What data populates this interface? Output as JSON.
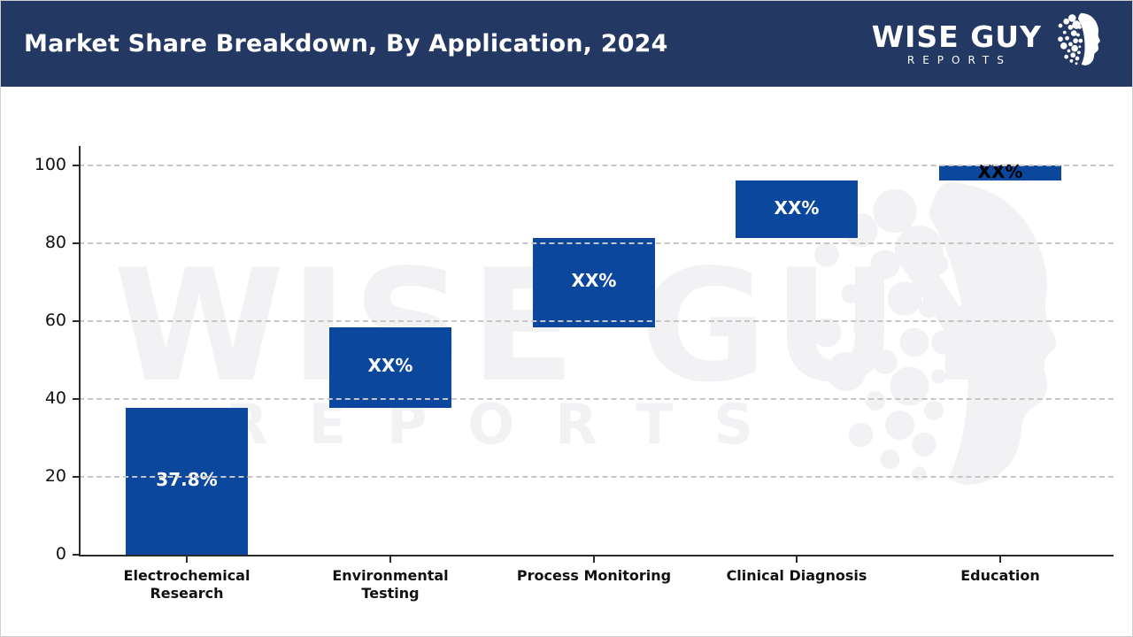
{
  "header": {
    "title": "Market Share Breakdown, By Application, 2024",
    "logo": {
      "line1": "WISE GUY",
      "line2": "REPORTS"
    }
  },
  "watermark": {
    "line1": "WISE GUY",
    "line2": "REPORTS"
  },
  "colors": {
    "header_bg": "#233862",
    "bar_blue": "#0c479e",
    "grid_gray": "#c6c6c6",
    "spine_dark": "#2a2a2a",
    "watermark_gray": "#f2f2f4",
    "label_white": "#ffffff",
    "label_black": "#000000"
  },
  "chart_data": {
    "type": "bar",
    "subtype": "waterfall-stacked-cumulative",
    "title": "Market Share Breakdown, By Application, 2024",
    "xlabel": "",
    "ylabel": "",
    "ylim": [
      0,
      100
    ],
    "yticks": [
      0,
      20,
      40,
      60,
      80,
      100
    ],
    "grid": "horizontal-dashed",
    "legend": "none",
    "categories": [
      "Electrochemical\nResearch",
      "Environmental\nTesting",
      "Process Monitoring",
      "Clinical Diagnosis",
      "Education"
    ],
    "segments": [
      {
        "category": "Electrochemical\nResearch",
        "start": 0,
        "end": 37.8,
        "value": 37.8,
        "label": "37.8%",
        "label_color": "#ffffff"
      },
      {
        "category": "Environmental\nTesting",
        "start": 37.8,
        "end": 58.5,
        "value": 20.7,
        "label": "XX%",
        "label_color": "#ffffff"
      },
      {
        "category": "Process Monitoring",
        "start": 58.5,
        "end": 81.3,
        "value": 22.8,
        "label": "XX%",
        "label_color": "#ffffff"
      },
      {
        "category": "Clinical Diagnosis",
        "start": 81.3,
        "end": 96.1,
        "value": 14.8,
        "label": "XX%",
        "label_color": "#ffffff"
      },
      {
        "category": "Education",
        "start": 96.1,
        "end": 100,
        "value": 3.9,
        "label": "XX%",
        "label_color": "#000000"
      }
    ]
  }
}
